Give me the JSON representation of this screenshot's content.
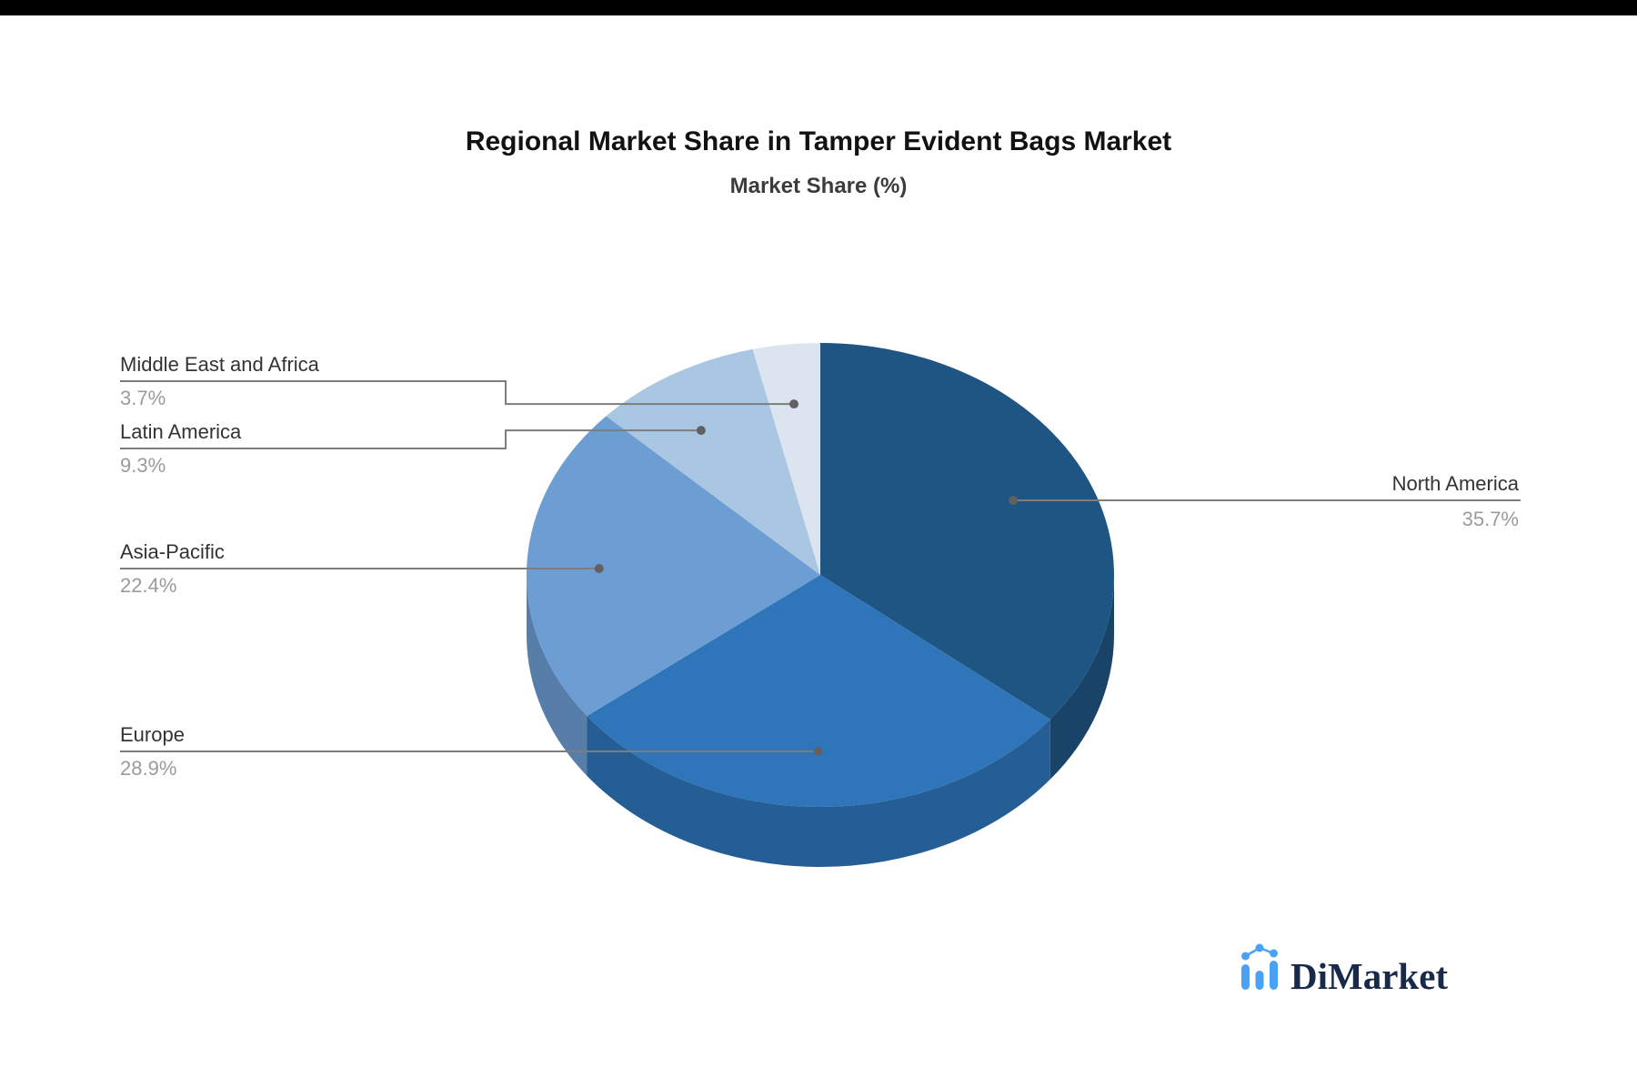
{
  "page": {
    "top_bar_color": "#000000",
    "background": "#ffffff"
  },
  "chart_data": {
    "type": "pie",
    "title": "Regional Market Share in Tamper Evident Bags Market",
    "subtitle": "Market Share (%)",
    "unit": "%",
    "effect": "3d",
    "start_angle": "12 o'clock, clockwise",
    "legend_position": "callout labels around pie",
    "slices": [
      {
        "label": "North America",
        "value": 35.7,
        "display": "35.7%",
        "color": "#1f5582"
      },
      {
        "label": "Europe",
        "value": 28.9,
        "display": "28.9%",
        "color": "#2e76b9"
      },
      {
        "label": "Asia-Pacific",
        "value": 22.4,
        "display": "22.4%",
        "color": "#6d9ed3"
      },
      {
        "label": "Latin America",
        "value": 9.3,
        "display": "9.3%",
        "color": "#a9c6e2"
      },
      {
        "label": "Middle East and Africa",
        "value": 3.7,
        "display": "3.7%",
        "color": "#dce5ef"
      }
    ]
  },
  "branding": {
    "logo_text": "DiMarket",
    "logo_color": "#19294a",
    "icon_color": "#4aa2f6"
  },
  "style": {
    "leader_color": "#7d7d7d",
    "label_color": "#333333",
    "value_color": "#9b9b9b"
  }
}
